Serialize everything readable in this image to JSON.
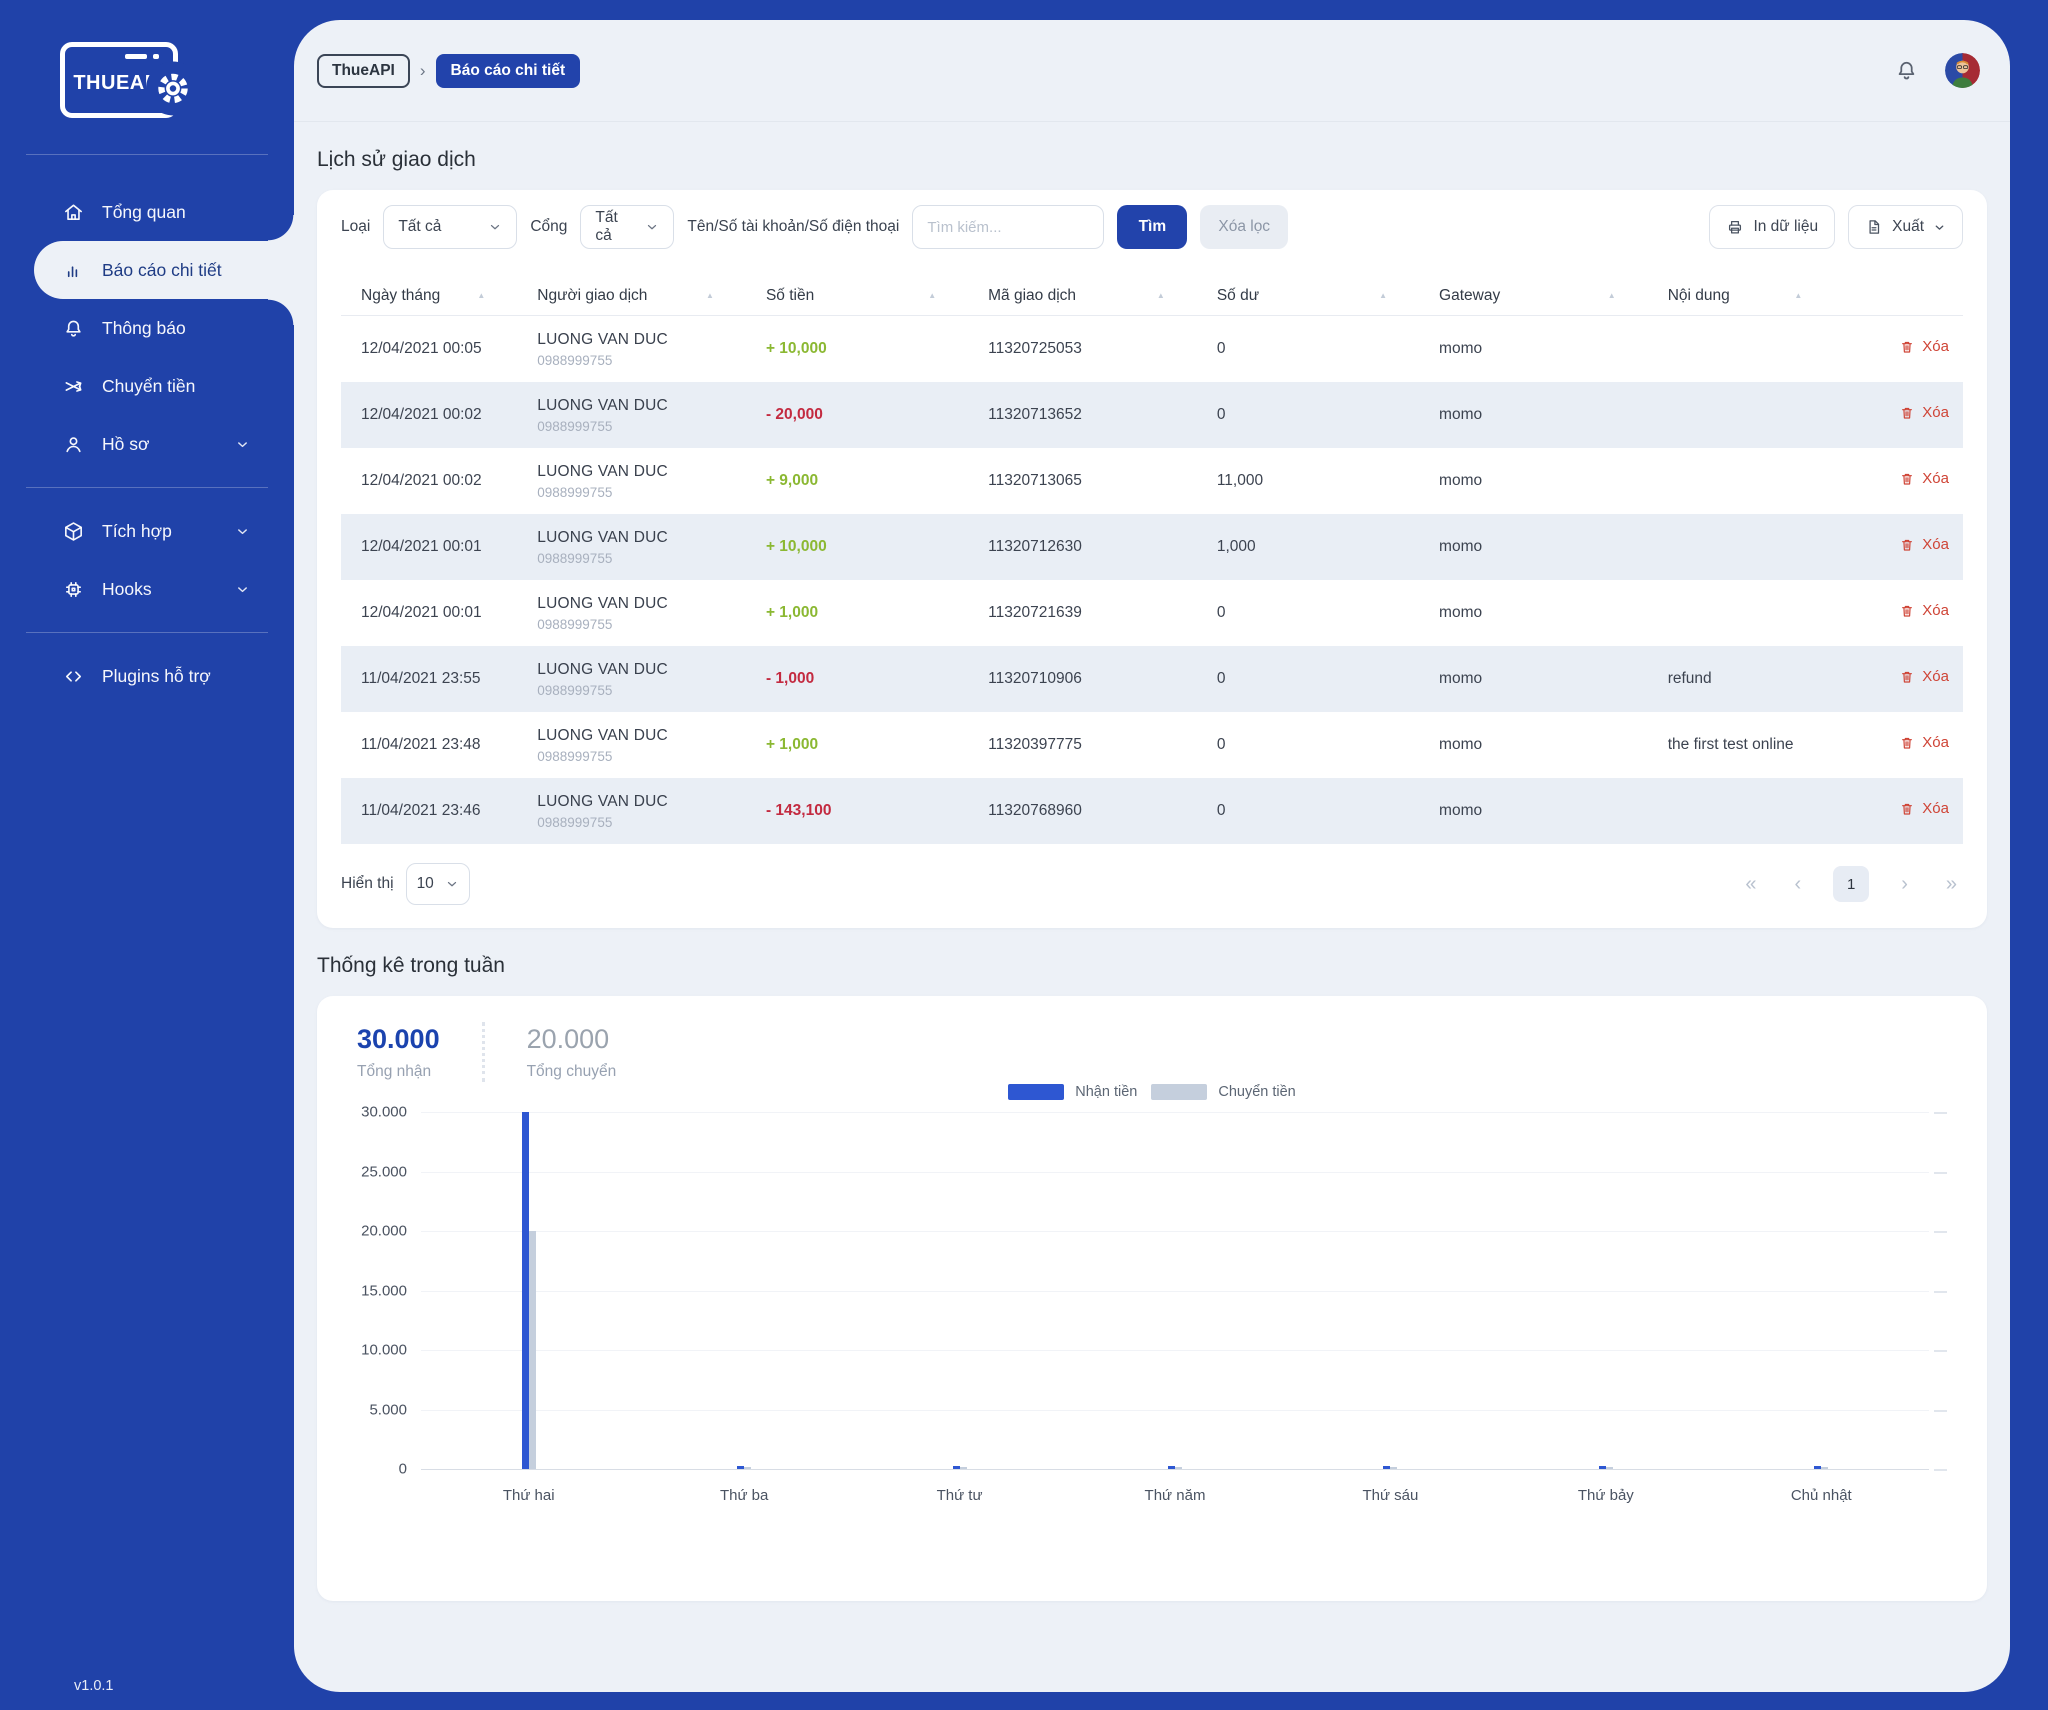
{
  "app": {
    "logo_text": "THUEAPI",
    "version": "v1.0.1"
  },
  "sidebar": {
    "groups": [
      {
        "items": [
          {
            "id": "tong-quan",
            "label": "Tổng quan",
            "icon": "home-icon"
          },
          {
            "id": "bao-cao-chi-tiet",
            "label": "Báo cáo chi tiết",
            "icon": "bar-chart-icon",
            "active": true
          },
          {
            "id": "thong-bao",
            "label": "Thông báo",
            "icon": "bell-icon"
          },
          {
            "id": "chuyen-tien",
            "label": "Chuyển tiền",
            "icon": "transfer-icon"
          },
          {
            "id": "ho-so",
            "label": "Hồ sơ",
            "icon": "user-icon",
            "chevron": true
          }
        ]
      },
      {
        "items": [
          {
            "id": "tich-hop",
            "label": "Tích hợp",
            "icon": "cube-icon",
            "chevron": true
          },
          {
            "id": "hooks",
            "label": "Hooks",
            "icon": "chip-icon",
            "chevron": true
          }
        ]
      },
      {
        "items": [
          {
            "id": "plugins",
            "label": "Plugins hỗ trợ",
            "icon": "code-icon"
          }
        ]
      }
    ]
  },
  "breadcrumb": {
    "root": "ThueAPI",
    "separator": "›",
    "current": "Báo cáo chi tiết"
  },
  "page": {
    "title": "Lịch sử giao dịch",
    "stats_title": "Thống kê trong tuần"
  },
  "filters": {
    "type_label": "Loại",
    "type_value": "Tất cả",
    "gateway_label": "Cổng",
    "gateway_value": "Tất cả",
    "search_label": "Tên/Số tài khoản/Số điện thoại",
    "search_placeholder": "Tìm kiếm...",
    "search_button": "Tìm",
    "clear_button": "Xóa lọc",
    "print_button": "In dữ liệu",
    "export_button": "Xuất"
  },
  "table": {
    "sort_icon": "▲",
    "columns": [
      "Ngày tháng",
      "Người giao dịch",
      "Số tiền",
      "Mã giao dịch",
      "Số dư",
      "Gateway",
      "Nội dung"
    ],
    "rows": [
      {
        "date": "12/04/2021 00:05",
        "name": "LUONG VAN DUC",
        "phone": "0988999755",
        "amount": "+ 10,000",
        "direction": "in",
        "code": "11320725053",
        "balance": "0",
        "gateway": "momo",
        "note": "",
        "action": "Xóa"
      },
      {
        "date": "12/04/2021 00:02",
        "name": "LUONG VAN DUC",
        "phone": "0988999755",
        "amount": "- 20,000",
        "direction": "out",
        "code": "11320713652",
        "balance": "0",
        "gateway": "momo",
        "note": "",
        "action": "Xóa"
      },
      {
        "date": "12/04/2021 00:02",
        "name": "LUONG VAN DUC",
        "phone": "0988999755",
        "amount": "+ 9,000",
        "direction": "in",
        "code": "11320713065",
        "balance": "11,000",
        "gateway": "momo",
        "note": "",
        "action": "Xóa"
      },
      {
        "date": "12/04/2021 00:01",
        "name": "LUONG VAN DUC",
        "phone": "0988999755",
        "amount": "+ 10,000",
        "direction": "in",
        "code": "11320712630",
        "balance": "1,000",
        "gateway": "momo",
        "note": "",
        "action": "Xóa"
      },
      {
        "date": "12/04/2021 00:01",
        "name": "LUONG VAN DUC",
        "phone": "0988999755",
        "amount": "+ 1,000",
        "direction": "in",
        "code": "11320721639",
        "balance": "0",
        "gateway": "momo",
        "note": "",
        "action": "Xóa"
      },
      {
        "date": "11/04/2021 23:55",
        "name": "LUONG VAN DUC",
        "phone": "0988999755",
        "amount": "- 1,000",
        "direction": "out",
        "code": "11320710906",
        "balance": "0",
        "gateway": "momo",
        "note": "refund",
        "action": "Xóa"
      },
      {
        "date": "11/04/2021 23:48",
        "name": "LUONG VAN DUC",
        "phone": "0988999755",
        "amount": "+ 1,000",
        "direction": "in",
        "code": "11320397775",
        "balance": "0",
        "gateway": "momo",
        "note": "the first test online",
        "action": "Xóa"
      },
      {
        "date": "11/04/2021 23:46",
        "name": "LUONG VAN DUC",
        "phone": "0988999755",
        "amount": "- 143,100",
        "direction": "out",
        "code": "11320768960",
        "balance": "0",
        "gateway": "momo",
        "note": "",
        "action": "Xóa"
      }
    ]
  },
  "pagination": {
    "show_label": "Hiển thị",
    "page_size": "10",
    "first": "«",
    "prev": "‹",
    "current_page": "1",
    "next": "›",
    "last": "»"
  },
  "stats": {
    "received_value": "30.000",
    "received_label": "Tổng nhận",
    "transferred_value": "20.000",
    "transferred_label": "Tổng chuyển"
  },
  "chart_data": {
    "type": "bar",
    "title": "Thống kê trong tuần",
    "categories": [
      "Thứ hai",
      "Thứ ba",
      "Thứ tư",
      "Thứ năm",
      "Thứ sáu",
      "Thứ bảy",
      "Chủ nhật"
    ],
    "series": [
      {
        "name": "Nhận tiền",
        "color": "#2e57d2",
        "values": [
          30000,
          250,
          250,
          250,
          250,
          250,
          250
        ]
      },
      {
        "name": "Chuyển tiền",
        "color": "#c5cfdd",
        "values": [
          20000,
          200,
          200,
          200,
          200,
          200,
          200
        ]
      }
    ],
    "xlabel": "",
    "ylabel": "",
    "ylim": [
      0,
      30000
    ],
    "yticks": [
      "30.000",
      "25.000",
      "20.000",
      "15.000",
      "10.000",
      "5.000",
      "0"
    ],
    "ytick_values": [
      30000,
      25000,
      20000,
      15000,
      10000,
      5000,
      0
    ],
    "grid": true,
    "legend_position": "top-center"
  }
}
